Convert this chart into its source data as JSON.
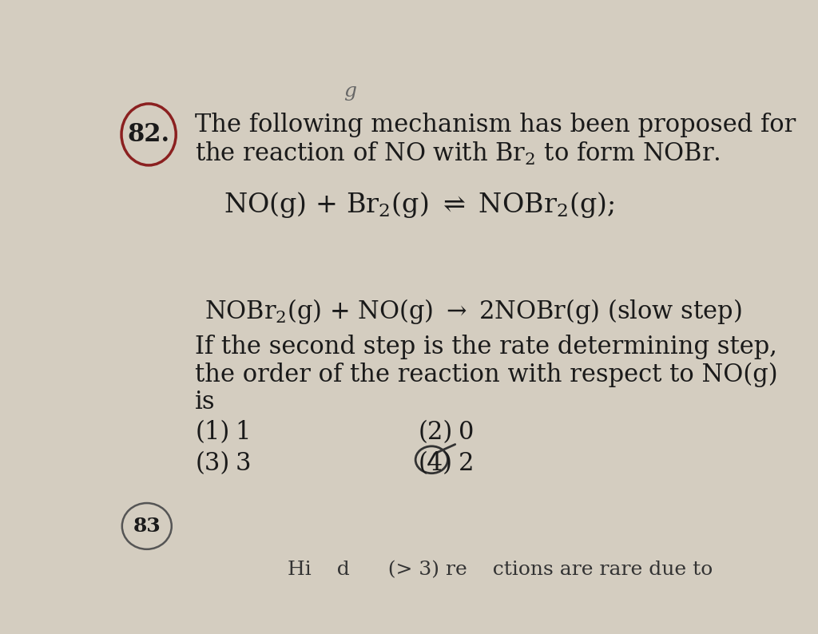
{
  "bg_color": "#d4cdc0",
  "text_color": "#1a1a1a",
  "circle_color": "#8b2020",
  "question_number": "82.",
  "title_line1": "The following mechanism has been proposed for",
  "title_line2_a": "the reaction of NO with Br",
  "title_line2_b": " to form NOBr.",
  "eq1_part1": "NO(g) + Br",
  "eq1_part2": "(g) ⇌ NOBr",
  "eq1_part3": "(g);",
  "eq2_part1": "NOBr",
  "eq2_part2": "(g) + NO(g) → 2NOBr(g) (slow step)",
  "para1": "If the second step is the rate determining step,",
  "para2": "the order of the reaction with respect to NO(g)",
  "para3": "is",
  "opt1_label": "(1)",
  "opt1_val": "1",
  "opt2_label": "(2)",
  "opt2_val": "0",
  "opt3_label": "(3)",
  "opt3_val": "3",
  "opt4_label": "(4)",
  "opt4_val": "2",
  "bottom_num": "83",
  "partial_top": "g"
}
